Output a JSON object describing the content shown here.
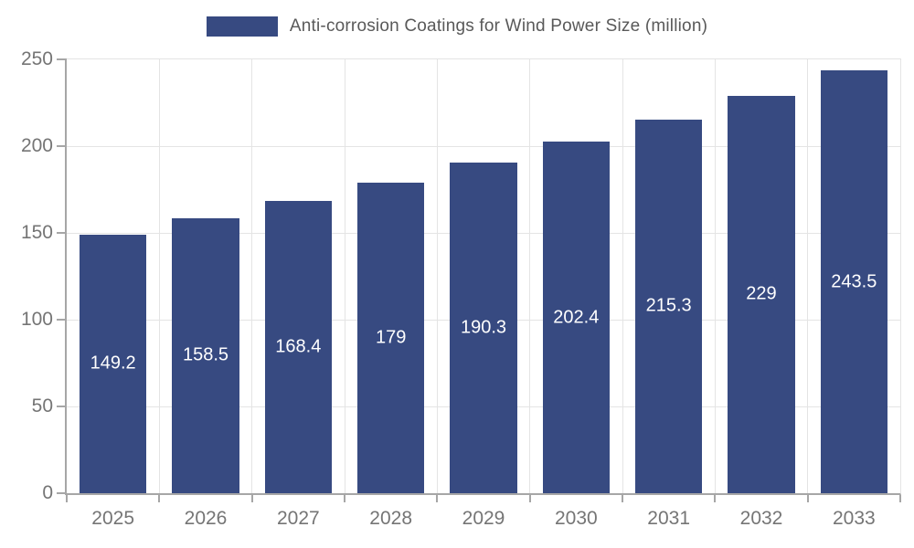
{
  "chart_data": {
    "type": "bar",
    "title": "Anti-corrosion Coatings for Wind Power Size (million)",
    "categories": [
      "2025",
      "2026",
      "2027",
      "2028",
      "2029",
      "2030",
      "2031",
      "2032",
      "2033"
    ],
    "values": [
      149.2,
      158.5,
      168.4,
      179,
      190.3,
      202.4,
      215.3,
      229,
      243.5
    ],
    "value_labels": [
      "149.2",
      "158.5",
      "168.4",
      "179",
      "190.3",
      "202.4",
      "215.3",
      "229",
      "243.5"
    ],
    "xlabel": "",
    "ylabel": "",
    "ylim": [
      0,
      250
    ],
    "yticks": [
      0,
      50,
      100,
      150,
      200,
      250
    ],
    "grid": true,
    "legend_position": "top-center",
    "colors": {
      "bar": "#374A81",
      "value_label": "#ffffff",
      "axis": "#a6a6a6",
      "grid": "#e4e4e4",
      "tick_label": "#757575",
      "legend_text": "#595959",
      "background": "#ffffff"
    }
  }
}
